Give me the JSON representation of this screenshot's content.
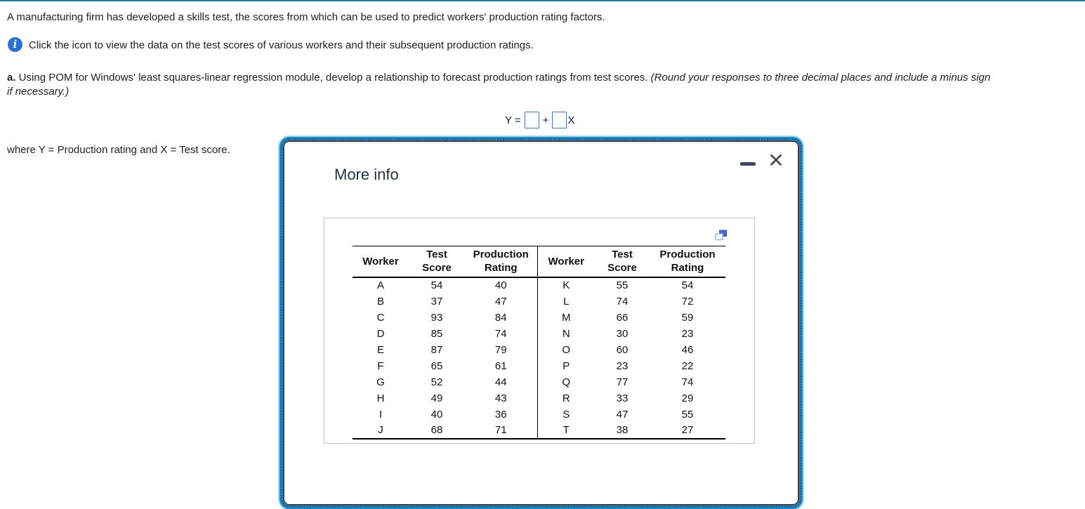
{
  "page": {
    "intro": "A manufacturing firm has developed a skills test, the scores from which can be used to predict workers' production rating factors.",
    "info_line": "Click the icon to view the data on the test scores of various workers and their subsequent production ratings.",
    "part_a_label": "a.",
    "part_a_text": " Using POM for Windows' least squares-linear regression module, develop a relationship to forecast production ratings from test scores. ",
    "part_a_note_line1": "(Round your responses to three decimal places and include a minus sign",
    "part_a_note_line2": "if necessary.)",
    "where_line": "where Y = Production rating and X = Test score.",
    "formula": {
      "lhs": "Y =",
      "plus": "+",
      "x_suffix": "X",
      "intercept_value": "",
      "slope_value": ""
    }
  },
  "icons": {
    "info_glyph": "i",
    "close_glyph": "✕",
    "minimize_shape": "horizontal-bar",
    "popout_shape": "overlapping-squares"
  },
  "colors": {
    "top_bar": "#267e9d",
    "info_icon": "#2a6fd4",
    "modal_border": "#2089c9",
    "answer_box_border": "#4a73c4",
    "window_controls": "#3f4a56",
    "popout_fill": "#4a66d2",
    "popout_light": "#a9b2e4"
  },
  "modal": {
    "title": "More info",
    "table": {
      "headers": [
        {
          "line1": "Worker",
          "line2": ""
        },
        {
          "line1": "Test",
          "line2": "Score"
        },
        {
          "line1": "Production",
          "line2": "Rating"
        },
        {
          "line1": "Worker",
          "line2": ""
        },
        {
          "line1": "Test",
          "line2": "Score"
        },
        {
          "line1": "Production",
          "line2": "Rating"
        }
      ],
      "rows": [
        [
          "A",
          "54",
          "40",
          "K",
          "55",
          "54"
        ],
        [
          "B",
          "37",
          "47",
          "L",
          "74",
          "72"
        ],
        [
          "C",
          "93",
          "84",
          "M",
          "66",
          "59"
        ],
        [
          "D",
          "85",
          "74",
          "N",
          "30",
          "23"
        ],
        [
          "E",
          "87",
          "79",
          "O",
          "60",
          "46"
        ],
        [
          "F",
          "65",
          "61",
          "P",
          "23",
          "22"
        ],
        [
          "G",
          "52",
          "44",
          "Q",
          "77",
          "74"
        ],
        [
          "H",
          "49",
          "43",
          "R",
          "33",
          "29"
        ],
        [
          "I",
          "40",
          "36",
          "S",
          "47",
          "55"
        ],
        [
          "J",
          "68",
          "71",
          "T",
          "38",
          "27"
        ]
      ]
    }
  }
}
